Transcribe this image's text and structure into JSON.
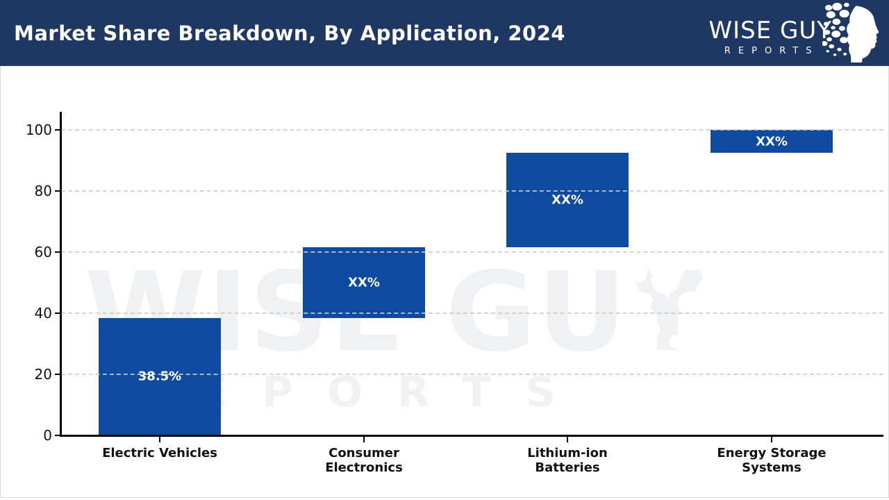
{
  "header": {
    "title": "Market Share Breakdown, By Application, 2024"
  },
  "logo": {
    "name": "WISE GUY",
    "sub": "REPORTS"
  },
  "watermark": {
    "name": "WISE GUY",
    "sub": "REPORTS"
  },
  "colors": {
    "header_bg": "#1f3863",
    "bar": "#0d4aa0",
    "grid": "#cbcbcb",
    "axis": "#000000",
    "bar_label": "#ffffff",
    "watermark": "#f0f1f3"
  },
  "chart_data": {
    "type": "bar",
    "subtype": "waterfall",
    "title": "Market Share Breakdown, By Application, 2024",
    "categories": [
      "Electric Vehicles",
      "Consumer\nElectronics",
      "Lithium-ion\nBatteries",
      "Energy Storage\nSystems"
    ],
    "segments": [
      {
        "category": "Electric Vehicles",
        "label": "38.5%",
        "start": 0,
        "end": 38.5
      },
      {
        "category": "Consumer Electronics",
        "label": "XX%",
        "start": 38.5,
        "end": 61.5
      },
      {
        "category": "Lithium-ion Batteries",
        "label": "XX%",
        "start": 61.5,
        "end": 92.5
      },
      {
        "category": "Energy Storage Systems",
        "label": "XX%",
        "start": 92.5,
        "end": 100
      }
    ],
    "ylim": [
      0,
      100
    ],
    "yticks": [
      0,
      20,
      40,
      60,
      80,
      100
    ],
    "xlabel": "",
    "ylabel": "",
    "grid": "horizontal-dashed",
    "legend": "none"
  }
}
